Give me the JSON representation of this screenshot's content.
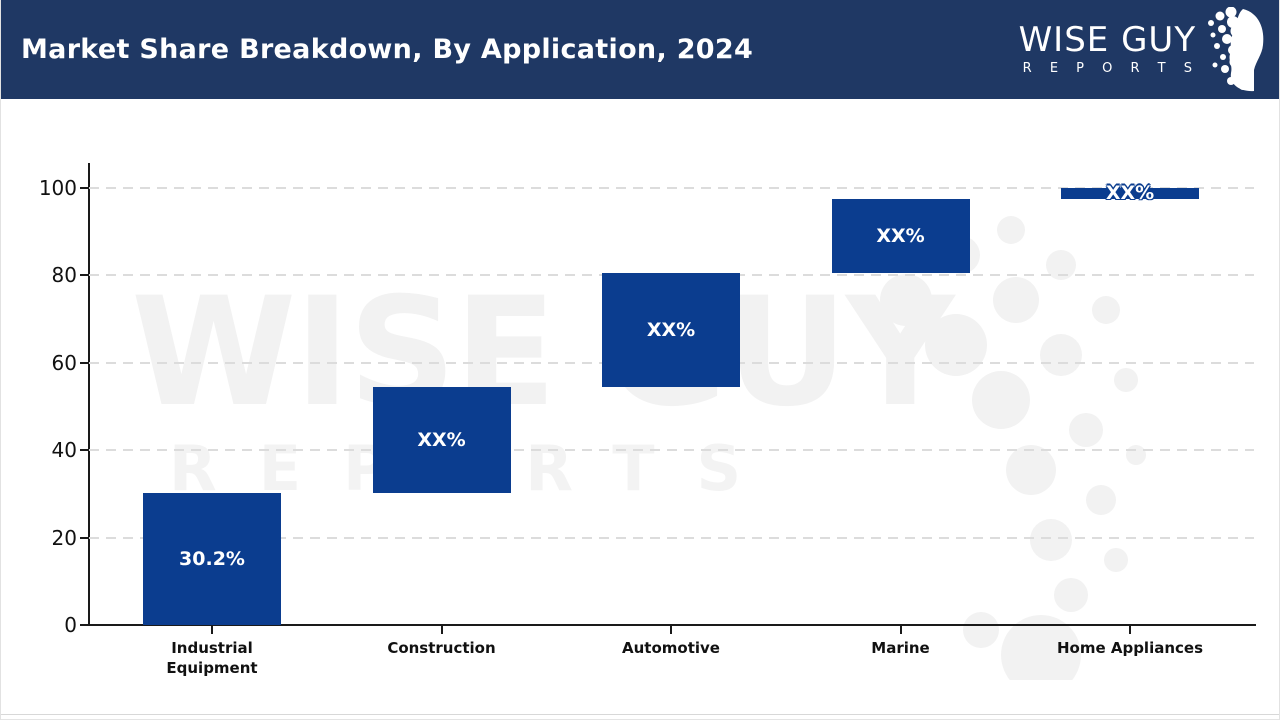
{
  "header": {
    "title": "Market Share Breakdown, By Application, 2024",
    "logo": {
      "line1": "WISE GUY",
      "line2": "R E P O R T S"
    }
  },
  "watermark": {
    "line1": "WISE GUY",
    "line2": "REPORTS"
  },
  "chart_data": {
    "type": "bar",
    "subtype": "waterfall-floating-bars",
    "title": "Market Share Breakdown, By Application, 2024",
    "xlabel": "",
    "ylabel": "",
    "categories": [
      "Industrial Equipment",
      "Construction",
      "Automotive",
      "Marine",
      "Home Appliances"
    ],
    "segments": [
      {
        "category": "Industrial Equipment",
        "start": 0,
        "end": 30.2,
        "label": "30.2%"
      },
      {
        "category": "Construction",
        "start": 30.2,
        "end": 54.4,
        "label": "XX%"
      },
      {
        "category": "Automotive",
        "start": 54.4,
        "end": 80.5,
        "label": "XX%"
      },
      {
        "category": "Marine",
        "start": 80.5,
        "end": 97.4,
        "label": "XX%"
      },
      {
        "category": "Home Appliances",
        "start": 97.4,
        "end": 100,
        "label": "XX%"
      }
    ],
    "yticks": [
      0,
      20,
      40,
      60,
      80,
      100
    ],
    "ylim": [
      0,
      105
    ],
    "grid": "dashed-horizontal",
    "legend": "none",
    "bar_color": "#0b3d8f",
    "bar_label_color": "#ffffff",
    "header_color": "#1f3864"
  }
}
